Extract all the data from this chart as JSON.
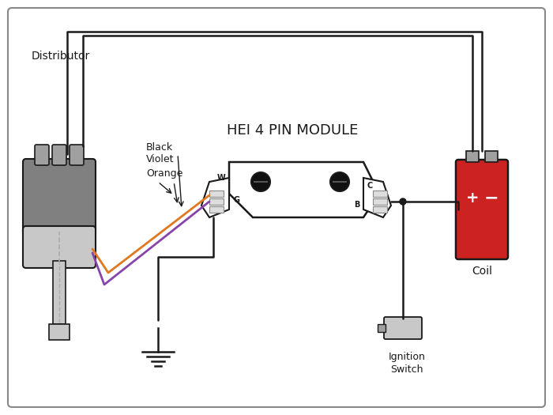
{
  "title": "HEI 4 PIN MODULE",
  "bg_color": "#ffffff",
  "line_color": "#1a1a1a",
  "distributor_label": "Distributor",
  "coil_label": "Coil",
  "ignition_label": "Ignition\nSwitch",
  "orange_label": "Orange",
  "violet_label": "Violet",
  "black_label": "Black",
  "pin_labels": [
    "W",
    "G",
    "B",
    "C"
  ],
  "dist_gray_dark": "#808080",
  "dist_gray_light": "#c8c8c8",
  "dist_gray_medium": "#a0a0a0",
  "coil_red": "#cc2222",
  "module_fill": "#f0f0f0",
  "orange_color": "#e07820",
  "violet_color": "#8844aa",
  "black_wire": "#1a1a1a"
}
